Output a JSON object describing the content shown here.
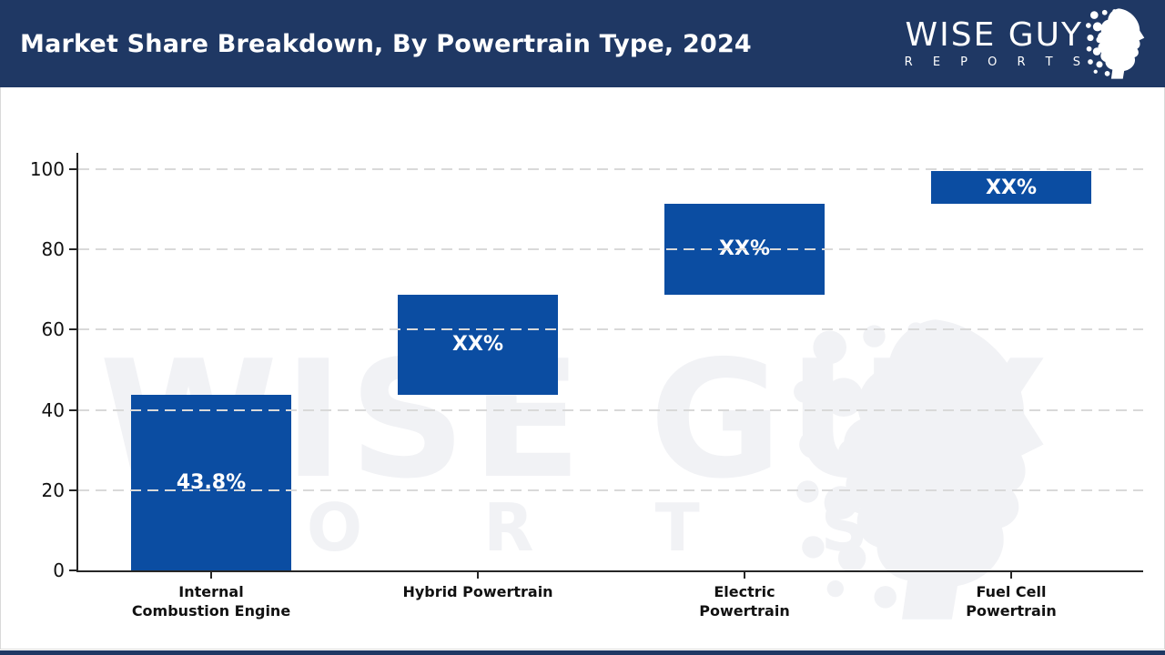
{
  "header": {
    "title": "Market Share Breakdown, By Powertrain Type, 2024",
    "logo": {
      "line1": "WISE GUY",
      "line2": "R E P O R T S"
    }
  },
  "watermark": {
    "line1": "WISE GUY",
    "line2": "P O R T S"
  },
  "colors": {
    "header_bg": "#1f3864",
    "footer_bg": "#1f3864",
    "bar": "#0b4da2",
    "bar_label": "#ffffff",
    "gridline": "#d9d9d9",
    "axis": "#262626",
    "watermark": "#f1f2f5",
    "title_text": "#ffffff"
  },
  "chart_data": {
    "type": "bar",
    "subtype": "waterfall-stacked-percent",
    "title": "Market Share Breakdown, By Powertrain Type, 2024",
    "categories": [
      "Internal\nCombustion Engine",
      "Hybrid Powertrain",
      "Electric\nPowertrain",
      "Fuel Cell\nPowertrain"
    ],
    "segments": [
      {
        "category": "Internal Combustion Engine",
        "label": "43.8%",
        "start": 0,
        "end": 43.8
      },
      {
        "category": "Hybrid Powertrain",
        "label": "XX%",
        "start": 43.8,
        "end": 68.8
      },
      {
        "category": "Electric Powertrain",
        "label": "XX%",
        "start": 68.8,
        "end": 91.4
      },
      {
        "category": "Fuel Cell Powertrain",
        "label": "XX%",
        "start": 91.4,
        "end": 99.5
      }
    ],
    "xlabel": "",
    "ylabel": "",
    "ylim": [
      0,
      104
    ],
    "yticks": [
      0,
      20,
      40,
      60,
      80,
      100
    ],
    "grid": "horizontal-dashed",
    "legend": "none"
  }
}
